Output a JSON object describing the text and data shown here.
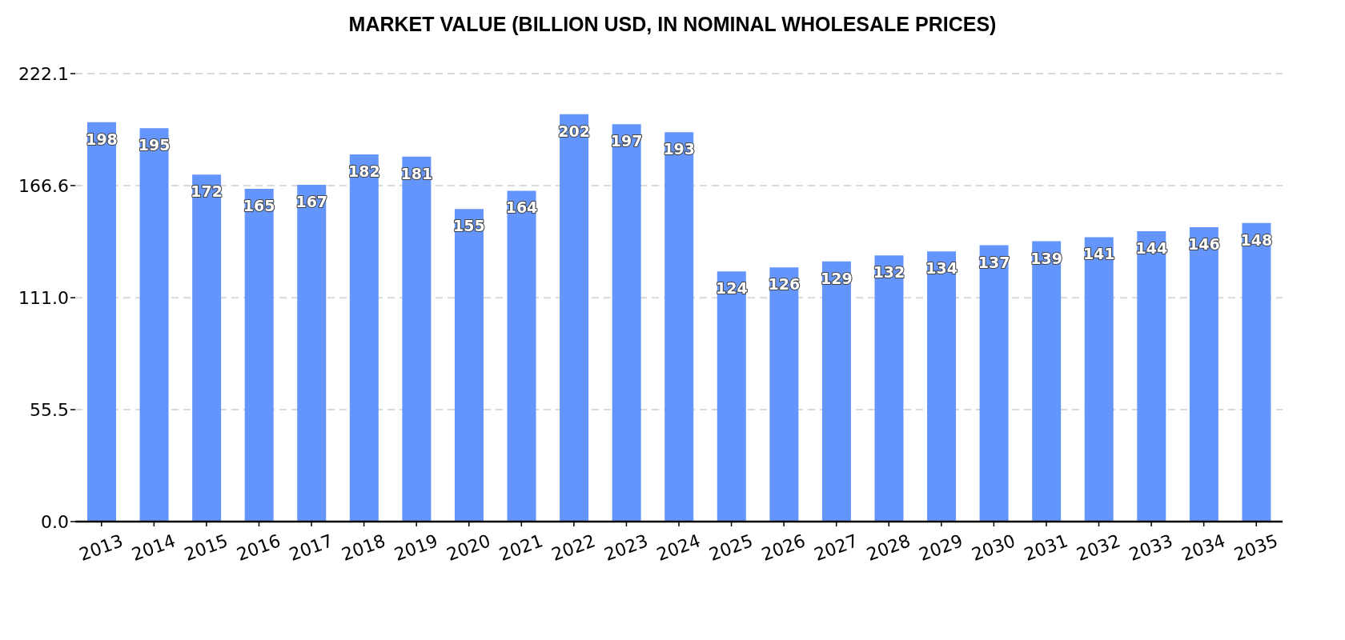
{
  "chart_data": {
    "type": "bar",
    "title": "MARKET VALUE (BILLION USD, IN NOMINAL WHOLESALE PRICES)",
    "categories": [
      "2013",
      "2014",
      "2015",
      "2016",
      "2017",
      "2018",
      "2019",
      "2020",
      "2021",
      "2022",
      "2023",
      "2024",
      "2025",
      "2026",
      "2027",
      "2028",
      "2029",
      "2030",
      "2031",
      "2032",
      "2033",
      "2034",
      "2035"
    ],
    "values": [
      198,
      195,
      172,
      165,
      167,
      182,
      181,
      155,
      164,
      202,
      197,
      193,
      124,
      126,
      129,
      132,
      134,
      137,
      139,
      141,
      144,
      146,
      148
    ],
    "color": "#6495fc",
    "ylim": [
      0,
      222.1
    ],
    "yticks": [
      {
        "value": 0,
        "label": "0.0"
      },
      55.5,
      {
        "value": 111,
        "label": "111.0"
      },
      166.6,
      222.1
    ],
    "grid": "y",
    "data_labels": true
  }
}
